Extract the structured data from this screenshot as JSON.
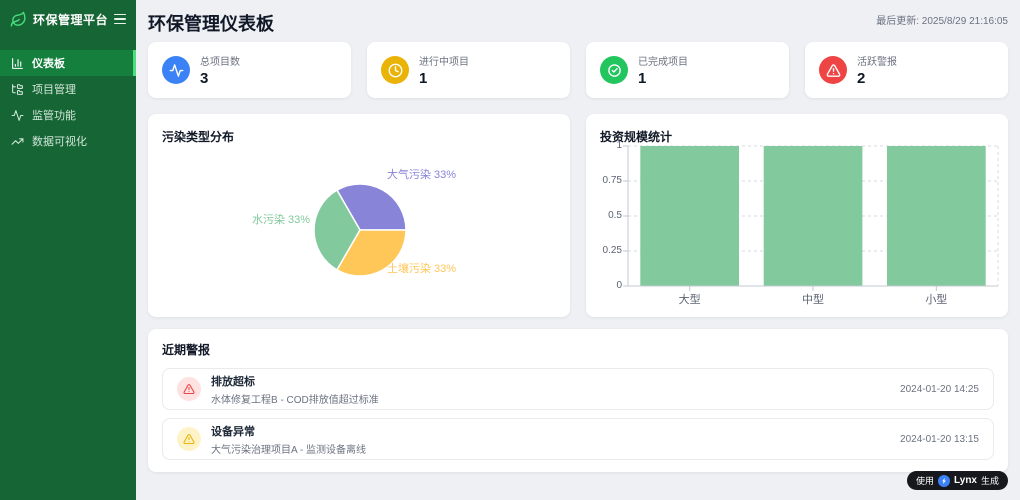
{
  "brand": {
    "name": "环保管理平台"
  },
  "header": {
    "title": "环保管理仪表板",
    "last_update": "最后更新: 2025/8/29 21:16:05"
  },
  "sidebar": {
    "items": [
      {
        "label": "仪表板",
        "active": true
      },
      {
        "label": "项目管理",
        "active": false
      },
      {
        "label": "监管功能",
        "active": false
      },
      {
        "label": "数据可视化",
        "active": false
      }
    ]
  },
  "stats": [
    {
      "label": "总项目数",
      "value": "3",
      "icon": "activity",
      "color": "#3b82f6"
    },
    {
      "label": "进行中项目",
      "value": "1",
      "icon": "clock",
      "color": "#eab308"
    },
    {
      "label": "已完成项目",
      "value": "1",
      "icon": "check-circle",
      "color": "#22c55e"
    },
    {
      "label": "活跃警报",
      "value": "2",
      "icon": "alert-triangle",
      "color": "#ef4444"
    }
  ],
  "chart_data": [
    {
      "type": "pie",
      "title": "污染类型分布",
      "labels": [
        "大气污染",
        "水污染",
        "土壤污染"
      ],
      "values": [
        33,
        33,
        33
      ],
      "display_labels": [
        "大气污染 33%",
        "水污染 33%",
        "土壤污染 33%"
      ],
      "colors": [
        "#8884d8",
        "#82ca9d",
        "#ffc658"
      ],
      "start_angle": 0,
      "direction": "counterclockwise",
      "legend": "none"
    },
    {
      "type": "bar",
      "title": "投资规模统计",
      "categories": [
        "大型",
        "中型",
        "小型"
      ],
      "values": [
        1,
        1,
        1
      ],
      "color": "#82ca9d",
      "ylim": [
        0,
        1
      ],
      "yticks": [
        "1",
        "0.75",
        "0.5",
        "0.25",
        "0"
      ],
      "grid": "dashed",
      "legend": "none"
    }
  ],
  "alerts": {
    "title": "近期警报",
    "items": [
      {
        "title": "排放超标",
        "desc": "水体修复工程B - COD排放值超过标准",
        "time": "2024-01-20 14:25",
        "icon_bg": "#fee2e2",
        "icon_color": "#ef4444"
      },
      {
        "title": "设备异常",
        "desc": "大气污染治理项目A - 监测设备离线",
        "time": "2024-01-20 13:15",
        "icon_bg": "#fef3c7",
        "icon_color": "#eab308"
      }
    ]
  },
  "footer_badge": {
    "prefix": "使用",
    "brand": "Lynx",
    "suffix": "生成"
  }
}
